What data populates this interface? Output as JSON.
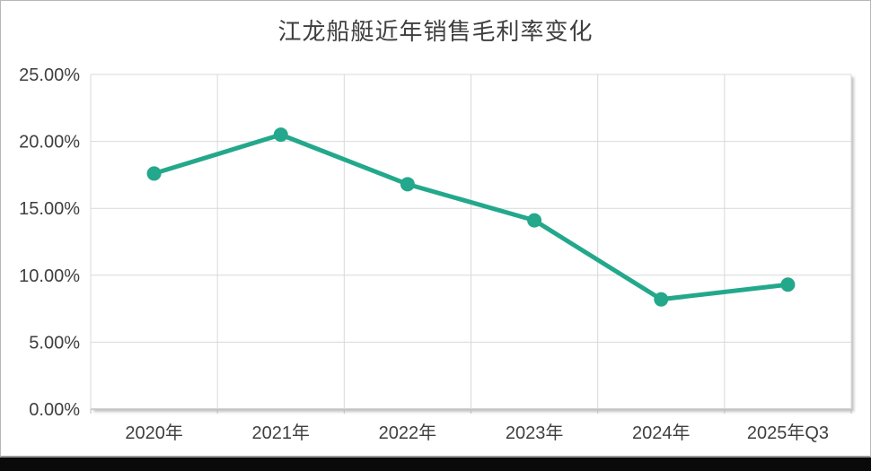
{
  "window": {
    "panel_background": "#ffffff",
    "panel_border_color": "#b7b7b7",
    "bottom_bar_color": "#0a0a0a"
  },
  "chart_data": {
    "type": "line",
    "title": "江龙船艇近年销售毛利率变化",
    "categories": [
      "2020年",
      "2021年",
      "2022年",
      "2023年",
      "2024年",
      "2025年Q3"
    ],
    "values": [
      17.6,
      20.5,
      16.8,
      14.1,
      8.2,
      9.3
    ],
    "y_ticks": [
      "0.00%",
      "5.00%",
      "10.00%",
      "15.00%",
      "20.00%",
      "25.00%"
    ],
    "ylim": [
      0,
      25
    ],
    "y_tick_step": 5,
    "xlabel": "",
    "ylabel": "",
    "grid": true,
    "legend": "none",
    "line_color": "#23a88b",
    "marker_color": "#23a88b",
    "grid_color": "#d9d9d9",
    "axis_color": "#c3c3c3",
    "tick_color": "#bfbfbf",
    "text_color": "#3f3f3f",
    "title_color": "#3f3f3f"
  }
}
